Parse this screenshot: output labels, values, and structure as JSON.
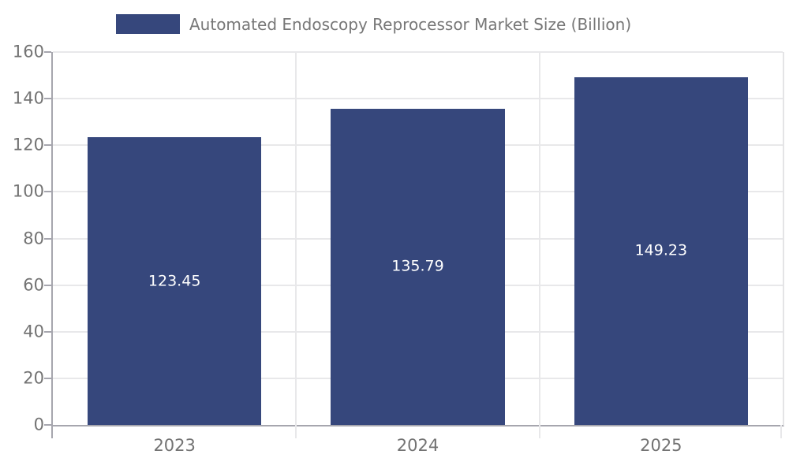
{
  "chart_data": {
    "type": "bar",
    "title": "Automated Endoscopy Reprocessor Market Size (Billion)",
    "categories": [
      "2023",
      "2024",
      "2025"
    ],
    "values": [
      123.45,
      135.79,
      149.23
    ],
    "data_labels": [
      "123.45",
      "135.79",
      "149.23"
    ],
    "xlabel": "",
    "ylabel": "",
    "ylim": [
      0,
      160
    ],
    "yticks": [
      0,
      20,
      40,
      60,
      80,
      100,
      120,
      140,
      160
    ],
    "grid": true,
    "legend_position": "top",
    "bar_color": "#36477C",
    "data_label_color": "#ffffff",
    "axis_color": "#a6a6ae",
    "grid_color": "#e8e8ea",
    "tick_label_color": "#737373",
    "legend_text_color": "#777777",
    "background_color": "#ffffff"
  }
}
